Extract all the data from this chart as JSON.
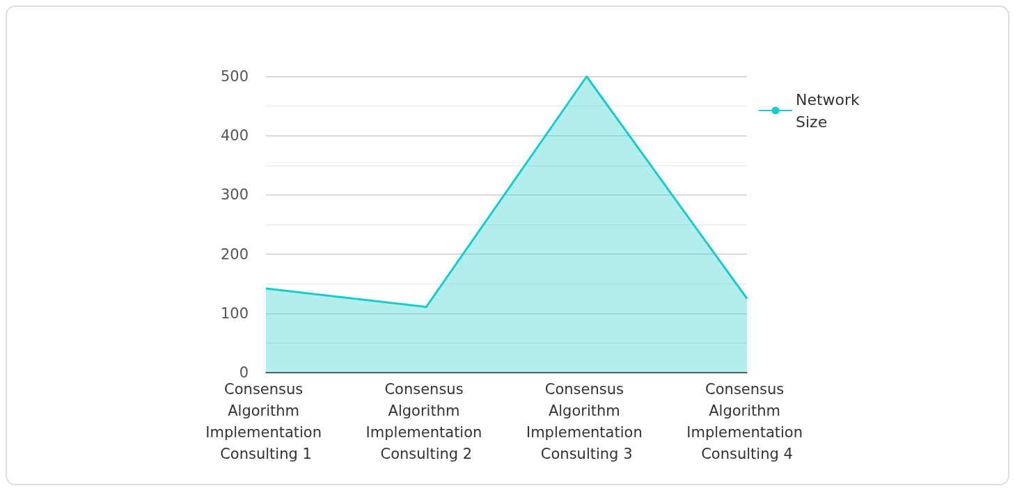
{
  "chart_data": {
    "type": "area",
    "categories": [
      "Consensus Algorithm Implementation Consulting 1",
      "Consensus Algorithm Implementation Consulting 2",
      "Consensus Algorithm Implementation Consulting 3",
      "Consensus Algorithm Implementation Consulting 4"
    ],
    "series": [
      {
        "name": "Network Size",
        "color": "#17cccc",
        "values": [
          142,
          111,
          500,
          125
        ]
      }
    ],
    "ylim": [
      0,
      500
    ],
    "yticks": [
      0,
      100,
      200,
      300,
      400,
      500
    ],
    "grid": "y",
    "legend": "top right",
    "marker": "none"
  }
}
